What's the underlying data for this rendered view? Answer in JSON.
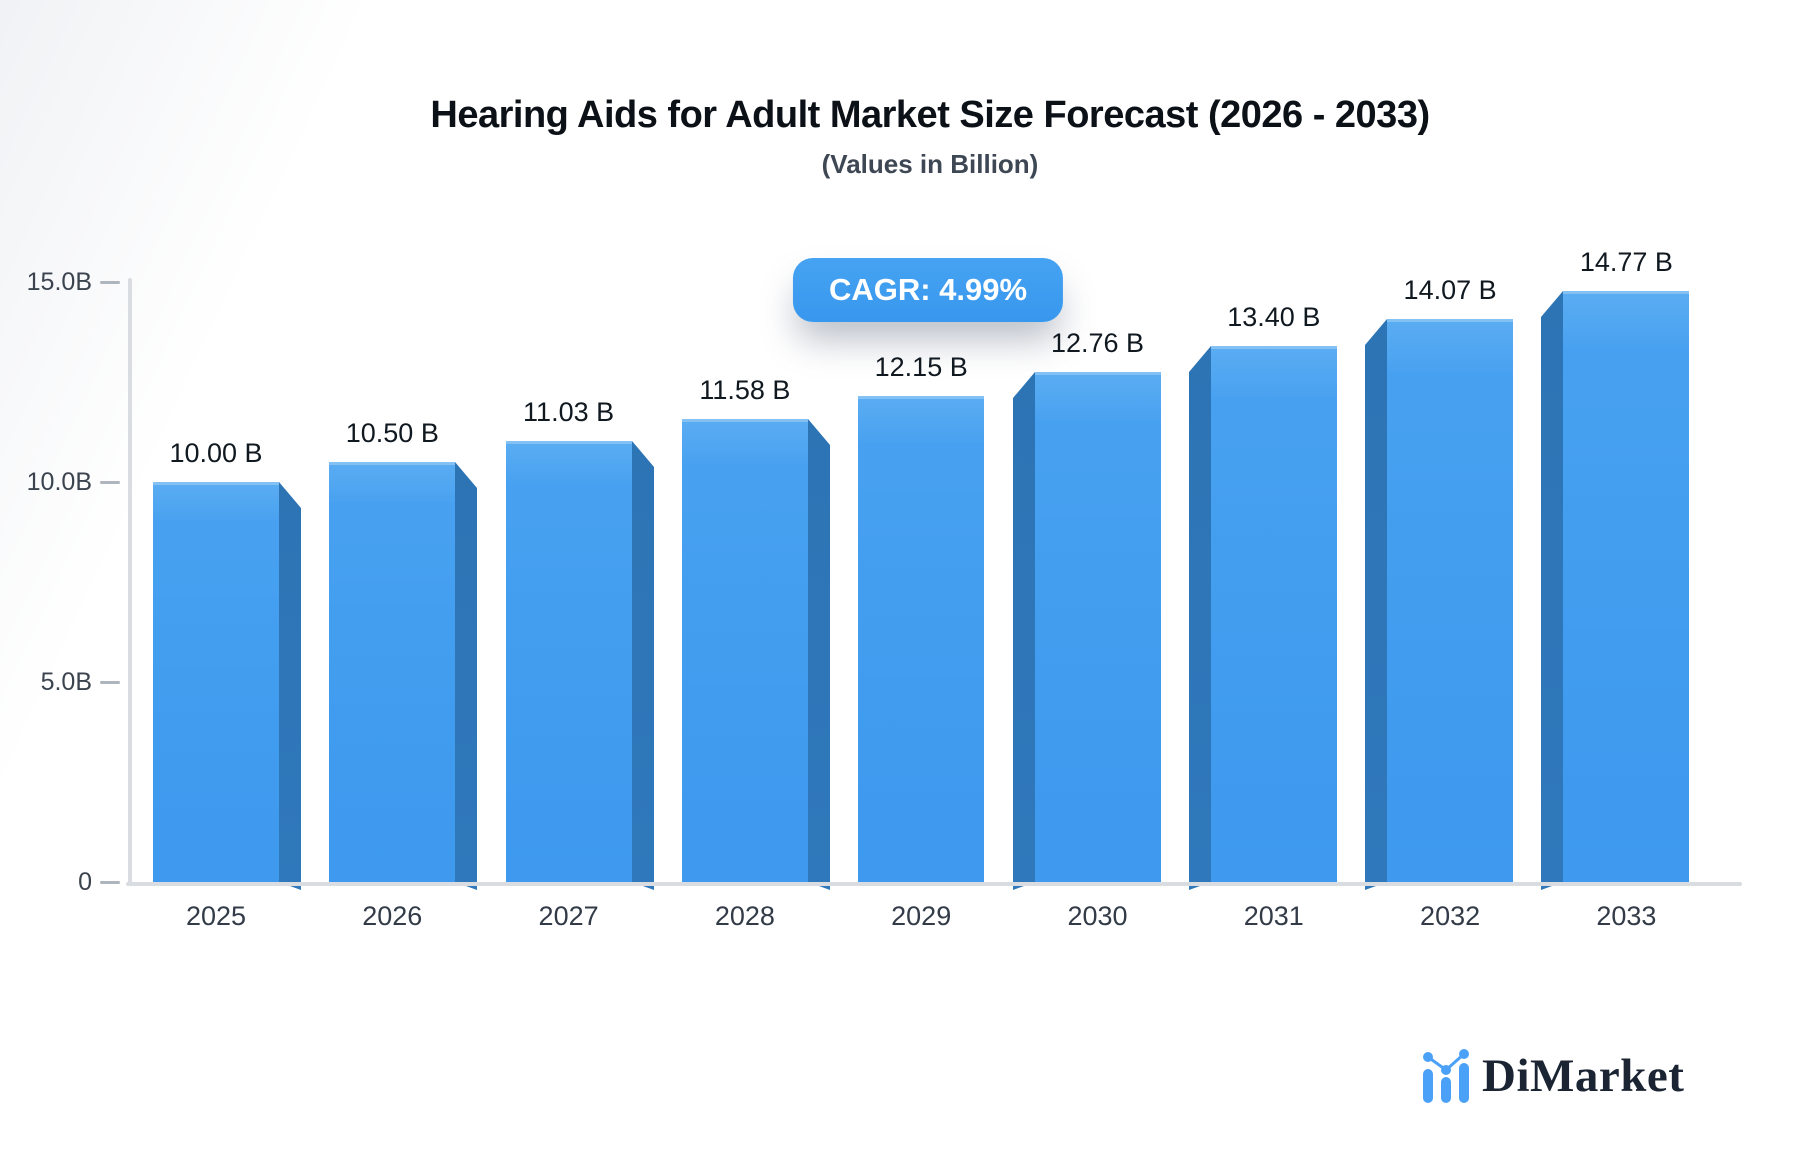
{
  "chart_data": {
    "type": "bar",
    "title": "Hearing Aids for Adult Market Size Forecast (2026 - 2033)",
    "subtitle": "(Values in Billion)",
    "badge_label": "CAGR: 4.99%",
    "categories": [
      "2025",
      "2026",
      "2027",
      "2028",
      "2029",
      "2030",
      "2031",
      "2032",
      "2033"
    ],
    "values": [
      10.0,
      10.5,
      11.03,
      11.58,
      12.15,
      12.76,
      13.4,
      14.07,
      14.77
    ],
    "value_labels": [
      "10.00 B",
      "10.50 B",
      "11.03 B",
      "11.58 B",
      "12.15 B",
      "12.76 B",
      "13.40 B",
      "14.07 B",
      "14.77 B"
    ],
    "unit": "Billion USD",
    "ylim": [
      0,
      15
    ],
    "yticks": [
      {
        "value": 15,
        "label": "15.0B"
      },
      {
        "value": 10,
        "label": "10.0B"
      },
      {
        "value": 5,
        "label": "5.0B"
      },
      {
        "value": 0,
        "label": "0"
      }
    ],
    "grid": false,
    "legend": false,
    "bar_style": "3d-beveled, center perspective"
  },
  "branding": {
    "logo_text": "DiMarket",
    "logo_icon": "mini-bar-chart-icon"
  },
  "colors": {
    "background": "#FFFFFF",
    "bar_front_top": "#5BADF2",
    "bar_front_bottom": "#3E99EF",
    "bar_side": "#2D74B5",
    "badge_bg": "#3D9BEF",
    "badge_text": "#FFFFFF",
    "title_text": "#0C1117",
    "subtitle_text": "#3E4754",
    "value_label_text": "#101820",
    "x_label_text": "#333B48",
    "y_label_text": "#3B434E",
    "axis_line": "#D9DCE1",
    "tick_dash": "#AFB5BD",
    "logo_text": "#1B2433",
    "logo_blue": "#4BA1F7"
  }
}
